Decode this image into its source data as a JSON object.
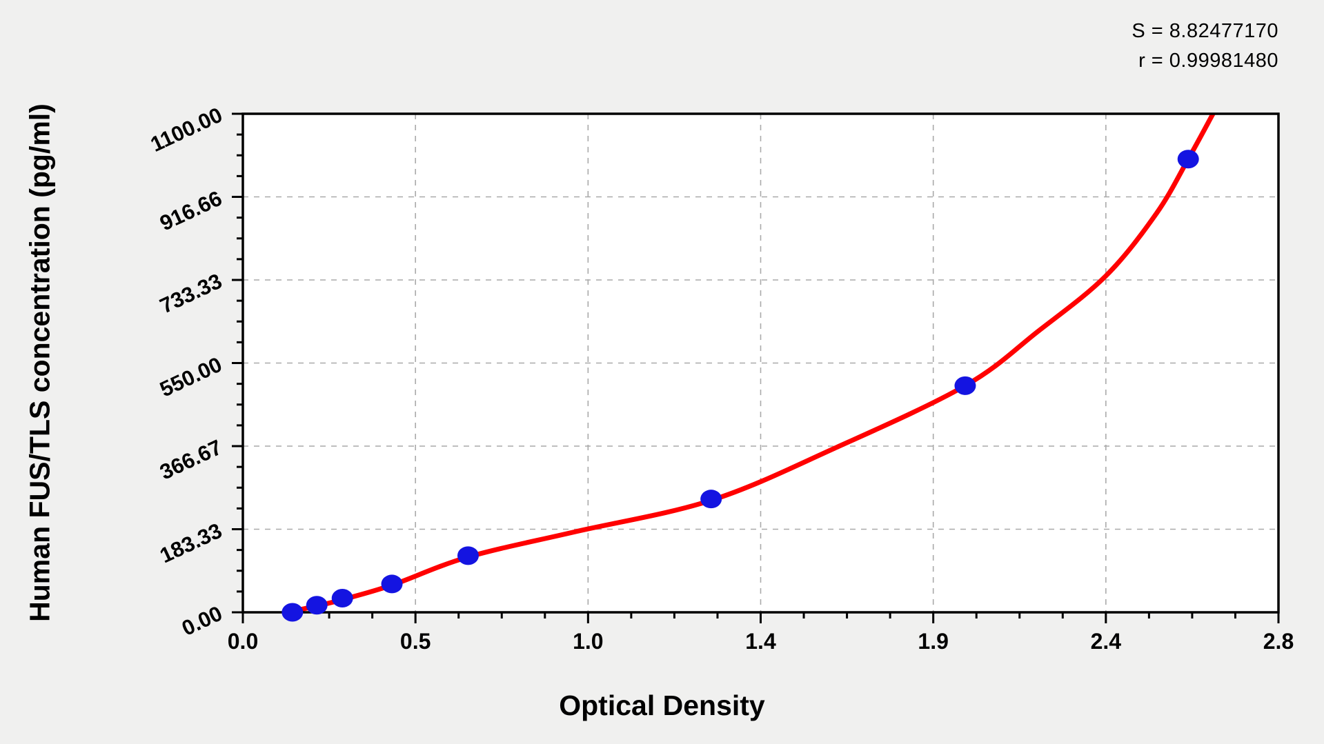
{
  "figure": {
    "background": "#f0f0ef",
    "plot_background": "#ffffff",
    "frame_color": "#000000",
    "grid_color": "#a9a9a9",
    "text_color": "#000000"
  },
  "annotations": {
    "s_value": "S = 8.82477170",
    "r_value": "r = 0.99981480"
  },
  "chart_data": {
    "type": "scatter",
    "title": "",
    "xlabel": "Optical Density",
    "ylabel": "Human FUS/TLS concentration (pg/ml)",
    "xlim": [
      0,
      2.8
    ],
    "ylim": [
      0,
      1100
    ],
    "grid": "dashed gray lines at interior major ticks, both axes",
    "legend_position": "none",
    "x_tick_labels": [
      "0.0",
      "0.5",
      "1.0",
      "1.4",
      "1.9",
      "2.4",
      "2.8"
    ],
    "x_tick_values": [
      0,
      0.4667,
      0.9333,
      1.4,
      1.8667,
      2.3333,
      2.8
    ],
    "y_tick_labels": [
      "0.00",
      "183.33",
      "366.67",
      "550.00",
      "733.33",
      "916.66",
      "1100.00"
    ],
    "y_tick_values": [
      0,
      183.33,
      366.67,
      550.0,
      733.33,
      916.66,
      1100.0
    ],
    "minor_tick_divisions": 4,
    "series": [
      {
        "name": "standard-points",
        "marker": "filled-ellipse",
        "color": "#1414e1",
        "x": [
          0.134,
          0.2,
          0.269,
          0.403,
          0.609,
          1.266,
          1.953,
          2.556
        ],
        "y": [
          0,
          15.6,
          31.2,
          62.5,
          125,
          250,
          500,
          1000
        ]
      }
    ],
    "fit_curve": {
      "name": "regression-curve",
      "color": "#ff0000",
      "stroke_width": 7,
      "anchors_x": [
        0.119,
        0.2,
        0.269,
        0.403,
        0.609,
        0.9,
        1.266,
        1.6,
        1.953,
        2.15,
        2.333,
        2.47,
        2.556,
        2.623
      ],
      "anchors_y": [
        0,
        14,
        28,
        60,
        122,
        178,
        247,
        362,
        500,
        620,
        742,
        880,
        1000,
        1100
      ]
    },
    "stats": {
      "S": "8.82477170",
      "r": "0.99981480"
    }
  }
}
